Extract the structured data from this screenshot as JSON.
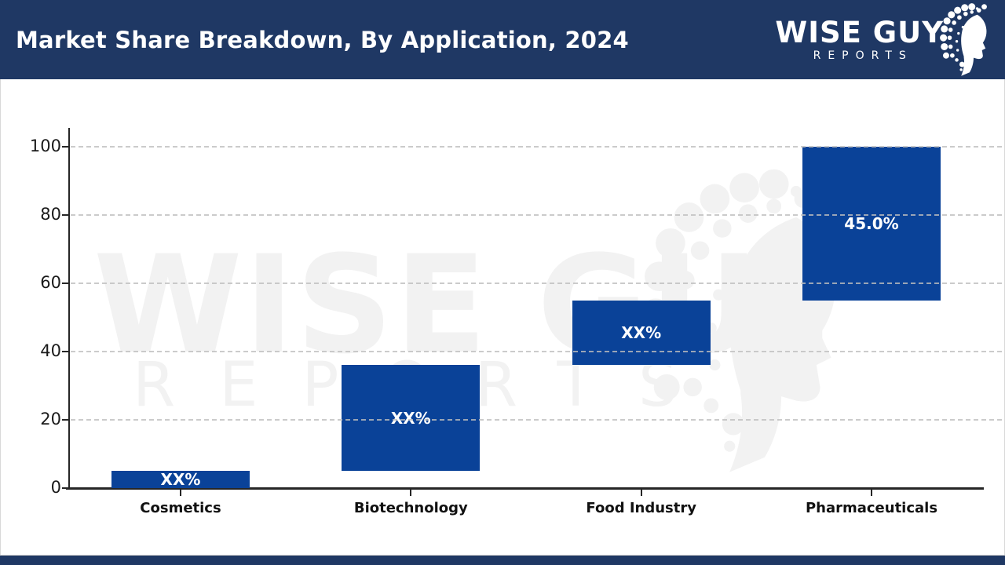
{
  "header": {
    "title": "Market Share Breakdown, By Application, 2024",
    "logo": {
      "line1": "WISE GUY",
      "line2": "REPORTS"
    }
  },
  "watermark": {
    "line1": "WISE GUY",
    "line2": "REPORTS"
  },
  "chart_data": {
    "type": "bar",
    "subtype": "waterfall-floating-bars",
    "title": "Market Share Breakdown, By Application, 2024",
    "categories": [
      "Cosmetics",
      "Biotechnology",
      "Food Industry",
      "Pharmaceuticals"
    ],
    "segments": [
      {
        "category": "Cosmetics",
        "start": 0,
        "end": 5,
        "value": 5,
        "label": "XX%"
      },
      {
        "category": "Biotechnology",
        "start": 5,
        "end": 36,
        "value": 31,
        "label": "XX%"
      },
      {
        "category": "Food Industry",
        "start": 36,
        "end": 55,
        "value": 19,
        "label": "XX%"
      },
      {
        "category": "Pharmaceuticals",
        "start": 55,
        "end": 100,
        "value": 45,
        "label": "45.0%"
      }
    ],
    "yticks": [
      0,
      20,
      40,
      60,
      80,
      100
    ],
    "ylim": [
      0,
      105
    ],
    "xlabel": "",
    "ylabel": "",
    "grid": "horizontal-dashed",
    "legend": "none",
    "bar_color": "#0a4298",
    "bar_label_color": "#ffffff"
  },
  "colors": {
    "header_bg": "#1f3864",
    "footer_bg": "#1f3864",
    "axis": "#262626",
    "grid": "#bebebe",
    "watermark": "#f2f2f2",
    "plot_bg": "#ffffff"
  }
}
